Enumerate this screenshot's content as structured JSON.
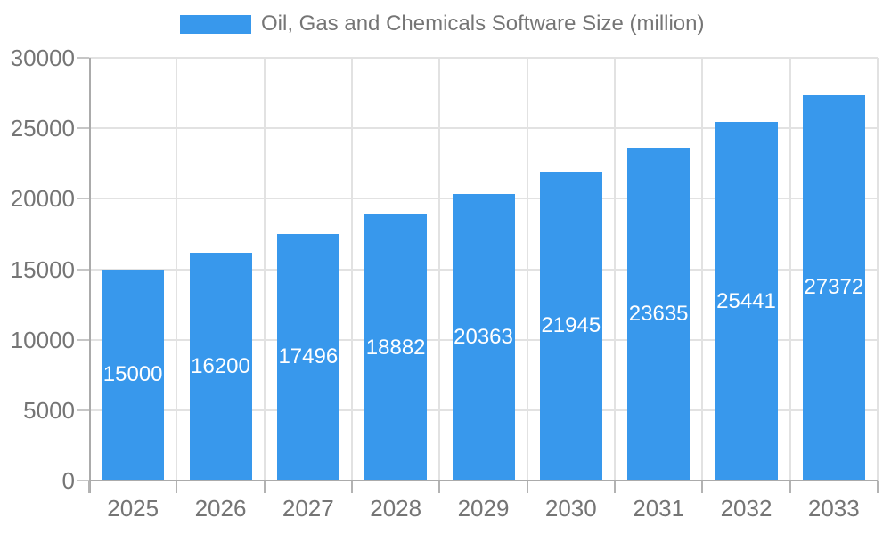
{
  "legend": {
    "label": "Oil, Gas and Chemicals Software Size (million)"
  },
  "colors": {
    "bar": "#3898ec",
    "grid": "#e2e2e2",
    "axis": "#ababab",
    "tick_text": "#757575",
    "data_label": "#ffffff",
    "background": "#ffffff"
  },
  "chart_data": {
    "type": "bar",
    "title": "Oil, Gas and Chemicals Software Size (million)",
    "categories": [
      "2025",
      "2026",
      "2027",
      "2028",
      "2029",
      "2030",
      "2031",
      "2032",
      "2033"
    ],
    "values": [
      15000,
      16200,
      17496,
      18882,
      20363,
      21945,
      23635,
      25441,
      27372
    ],
    "data_labels": [
      15000,
      16200,
      17496,
      18882,
      20363,
      21945,
      23635,
      25441,
      27372
    ],
    "xlabel": "",
    "ylabel": "",
    "ylim": [
      0,
      30000
    ],
    "yticks": [
      0,
      5000,
      10000,
      15000,
      20000,
      25000,
      30000
    ],
    "grid": true,
    "legend_position": "top",
    "data_label_position": "inside-center"
  }
}
